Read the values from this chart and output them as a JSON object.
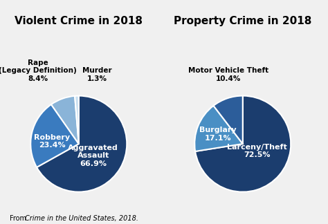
{
  "title1": "Violent Crime in 2018",
  "title2": "Property Crime in 2018",
  "violent_values": [
    66.9,
    23.4,
    8.4,
    1.3
  ],
  "violent_colors": [
    "#1b3d6e",
    "#3a7bbf",
    "#8ab4d8",
    "#c9dff0"
  ],
  "property_values": [
    72.5,
    17.1,
    10.4
  ],
  "property_colors": [
    "#1b3d6e",
    "#4a8fc4",
    "#2c5d9a"
  ],
  "background_color": "#f0f0f0",
  "title_fontsize": 11,
  "inner_label_fontsize": 8,
  "outer_label_fontsize": 7.5,
  "footnote_fontsize": 7
}
